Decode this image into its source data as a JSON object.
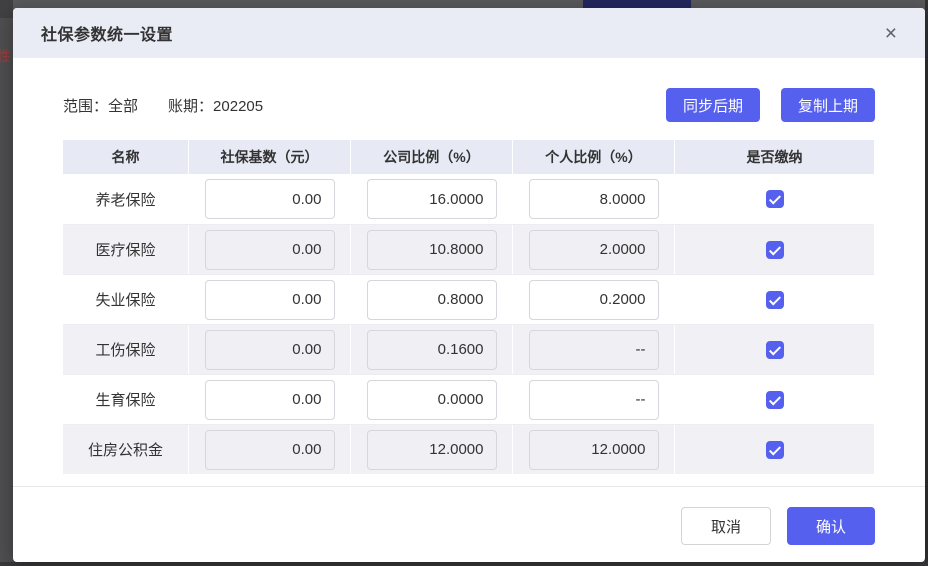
{
  "background": {
    "partial_text": "性",
    "topbar_accent_color": "#21265e"
  },
  "modal": {
    "title": "社保参数统一设置",
    "close_icon": "×",
    "filters": {
      "scope_label": "范围：",
      "scope_value": "全部",
      "period_label": "账期：",
      "period_value": "202205"
    },
    "actions": {
      "sync_next_label": "同步后期",
      "copy_prev_label": "复制上期"
    },
    "table": {
      "headers": [
        "名称",
        "社保基数（元）",
        "公司比例（%）",
        "个人比例（%）",
        "是否缴纳"
      ],
      "rows": [
        {
          "name": "养老保险",
          "base": "0.00",
          "company": "16.0000",
          "personal": "8.0000",
          "checked": true,
          "striped": false
        },
        {
          "name": "医疗保险",
          "base": "0.00",
          "company": "10.8000",
          "personal": "2.0000",
          "checked": true,
          "striped": true
        },
        {
          "name": "失业保险",
          "base": "0.00",
          "company": "0.8000",
          "personal": "0.2000",
          "checked": true,
          "striped": false
        },
        {
          "name": "工伤保险",
          "base": "0.00",
          "company": "0.1600",
          "personal": "--",
          "checked": true,
          "striped": true
        },
        {
          "name": "生育保险",
          "base": "0.00",
          "company": "0.0000",
          "personal": "--",
          "checked": true,
          "striped": false
        },
        {
          "name": "住房公积金",
          "base": "0.00",
          "company": "12.0000",
          "personal": "12.0000",
          "checked": true,
          "striped": true
        }
      ]
    },
    "footer": {
      "cancel_label": "取消",
      "confirm_label": "确认"
    }
  },
  "colors": {
    "accent": "#5560ee",
    "header_bg": "#e9ecf5",
    "table_header_bg": "#e7eaf5",
    "stripe_bg": "#f0f0f5"
  }
}
